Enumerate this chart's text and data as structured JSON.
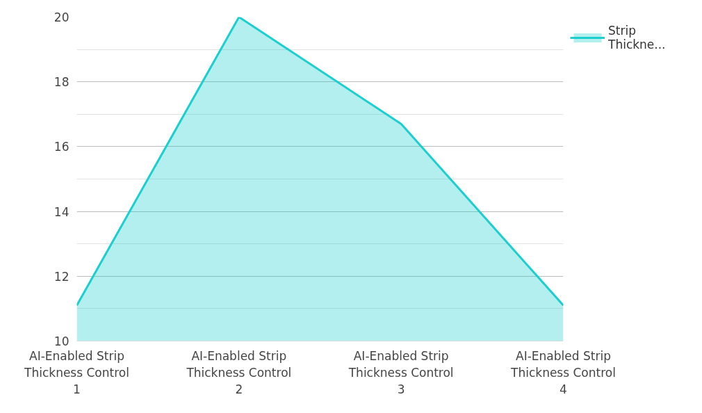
{
  "chart_data": {
    "type": "area",
    "categories": [
      "AI-Enabled Strip Thickness Control 1",
      "AI-Enabled Strip Thickness Control 2",
      "AI-Enabled Strip Thickness Control 3",
      "AI-Enabled Strip Thickness Control 4"
    ],
    "series": [
      {
        "name": "Strip Thickne...",
        "color": "#1ccfcf",
        "values": [
          11.1,
          20,
          16.7,
          11.1
        ]
      }
    ],
    "ylim": [
      10,
      20
    ],
    "yticks": [
      10,
      12,
      14,
      16,
      18,
      20
    ],
    "grid": "y",
    "legend": "top right"
  }
}
